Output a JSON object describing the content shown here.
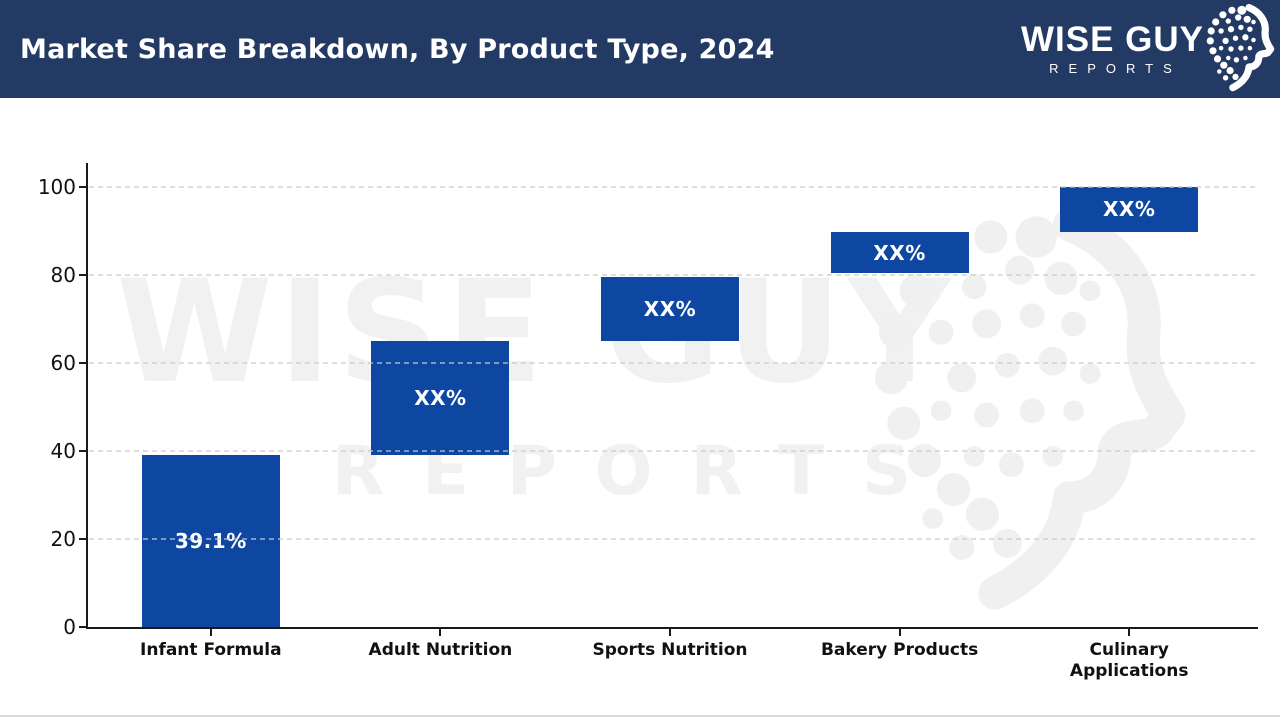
{
  "header": {
    "title": "Market Share Breakdown, By Product Type, 2024",
    "logo": {
      "line1": "WISE GUY",
      "line2": "REPORTS"
    }
  },
  "watermark": {
    "line1": "WISE GUY",
    "line2": "REPORTS"
  },
  "colors": {
    "header_bg": "#233a64",
    "bar_fill": "#0d47a1",
    "bar_label": "#ffffff",
    "gridline": "#dcdcdc",
    "axis": "#1a1a1a",
    "watermark": "#f1f1f1"
  },
  "chart_data": {
    "type": "bar",
    "subtype": "waterfall",
    "title": "Market Share Breakdown, By Product Type, 2024",
    "categories": [
      "Infant Formula",
      "Adult Nutrition",
      "Sports Nutrition",
      "Bakery Products",
      "Culinary Applications"
    ],
    "bars": [
      {
        "category": "Infant Formula",
        "start": 0,
        "end": 39.1,
        "label": "39.1%"
      },
      {
        "category": "Adult Nutrition",
        "start": 39.1,
        "end": 65.0,
        "label": "XX%"
      },
      {
        "category": "Sports Nutrition",
        "start": 65.0,
        "end": 79.6,
        "label": "XX%"
      },
      {
        "category": "Bakery Products",
        "start": 80.4,
        "end": 89.8,
        "label": "XX%"
      },
      {
        "category": "Culinary Applications",
        "start": 89.8,
        "end": 100.0,
        "label": "XX%"
      }
    ],
    "xlabel": "",
    "ylabel": "",
    "ylim": [
      0,
      105
    ],
    "yticks": [
      0,
      20,
      40,
      60,
      80,
      100
    ],
    "grid": {
      "axis": "y",
      "style": "dashed"
    },
    "legend": "none"
  }
}
